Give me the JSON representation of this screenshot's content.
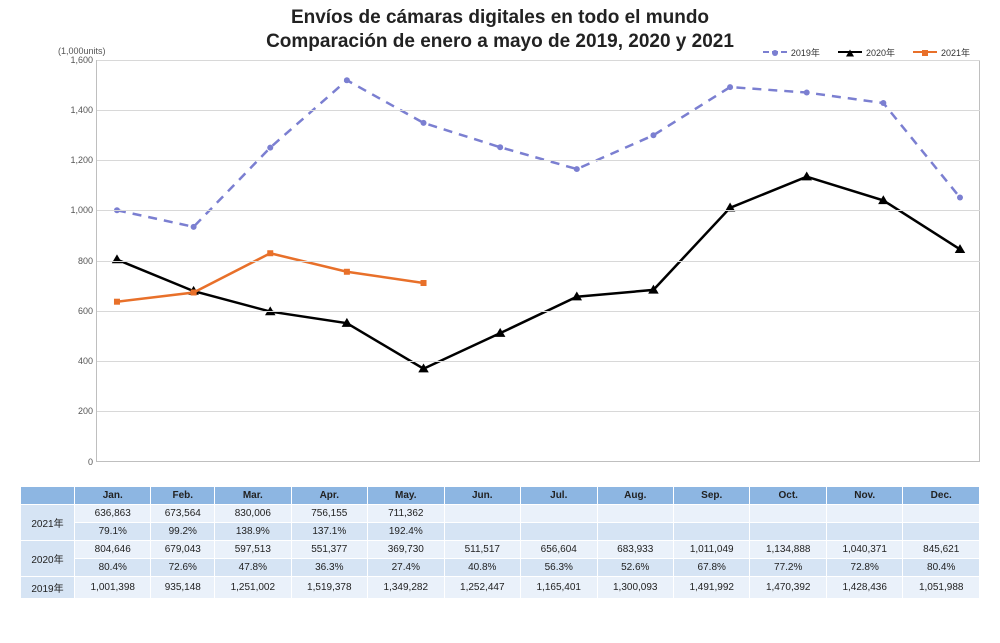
{
  "title_line1": "Envíos de cámaras digitales en todo el mundo",
  "title_line2": "Comparación de enero a mayo de 2019, 2020 y 2021",
  "title_fontsize": 19,
  "chart": {
    "type": "line",
    "y_unit_label": "(1,000units)",
    "background_color": "#ffffff",
    "grid_color": "#d8d8d8",
    "axis_color": "#bfbfbf",
    "ylim": [
      0,
      1600
    ],
    "ytick_step": 200,
    "ytick_labels": [
      "0",
      "200",
      "400",
      "600",
      "800",
      "1,000",
      "1,200",
      "1,400",
      "1,600"
    ],
    "categories": [
      "Jan.",
      "Feb.",
      "Mar.",
      "Apr.",
      "May.",
      "Jun.",
      "Jul.",
      "Aug.",
      "Sep.",
      "Oct.",
      "Nov.",
      "Dec."
    ],
    "legend_position": "top-right",
    "series": [
      {
        "key": "2019",
        "label": "2019年",
        "color": "#7b7fd1",
        "line_style": "dashed",
        "line_width": 2.5,
        "marker": "circle",
        "marker_size": 6,
        "values": [
          1001.398,
          935.148,
          1251.002,
          1519.378,
          1349.282,
          1252.447,
          1165.401,
          1300.093,
          1491.992,
          1470.392,
          1428.436,
          1051.988
        ]
      },
      {
        "key": "2020",
        "label": "2020年",
        "color": "#000000",
        "line_style": "solid",
        "line_width": 2.5,
        "marker": "triangle",
        "marker_size": 7,
        "values": [
          804.646,
          679.043,
          597.513,
          551.377,
          369.73,
          511.517,
          656.604,
          683.933,
          1011.049,
          1134.888,
          1040.371,
          845.621
        ]
      },
      {
        "key": "2021",
        "label": "2021年",
        "color": "#e8702a",
        "line_style": "solid",
        "line_width": 2.5,
        "marker": "square",
        "marker_size": 6,
        "values": [
          636.863,
          673.564,
          830.006,
          756.155,
          711.362
        ]
      }
    ]
  },
  "table": {
    "header_bg": "#8db6e2",
    "row_bg_a": "#eaf1fa",
    "row_bg_b": "#d6e4f4",
    "corner_blank": "",
    "columns": [
      "Jan.",
      "Feb.",
      "Mar.",
      "Apr.",
      "May.",
      "Jun.",
      "Jul.",
      "Aug.",
      "Sep.",
      "Oct.",
      "Nov.",
      "Dec."
    ],
    "row_labels": {
      "2021": "2021年",
      "2020": "2020年",
      "2019": "2019年"
    },
    "values_2021": [
      "636,863",
      "673,564",
      "830,006",
      "756,155",
      "711,362",
      "",
      "",
      "",
      "",
      "",
      "",
      ""
    ],
    "pct_2021": [
      "79.1%",
      "99.2%",
      "138.9%",
      "137.1%",
      "192.4%",
      "",
      "",
      "",
      "",
      "",
      "",
      ""
    ],
    "values_2020": [
      "804,646",
      "679,043",
      "597,513",
      "551,377",
      "369,730",
      "511,517",
      "656,604",
      "683,933",
      "1,011,049",
      "1,134,888",
      "1,040,371",
      "845,621"
    ],
    "pct_2020": [
      "80.4%",
      "72.6%",
      "47.8%",
      "36.3%",
      "27.4%",
      "40.8%",
      "56.3%",
      "52.6%",
      "67.8%",
      "77.2%",
      "72.8%",
      "80.4%"
    ],
    "values_2019": [
      "1,001,398",
      "935,148",
      "1,251,002",
      "1,519,378",
      "1,349,282",
      "1,252,447",
      "1,165,401",
      "1,300,093",
      "1,491,992",
      "1,470,392",
      "1,428,436",
      "1,051,988"
    ]
  }
}
